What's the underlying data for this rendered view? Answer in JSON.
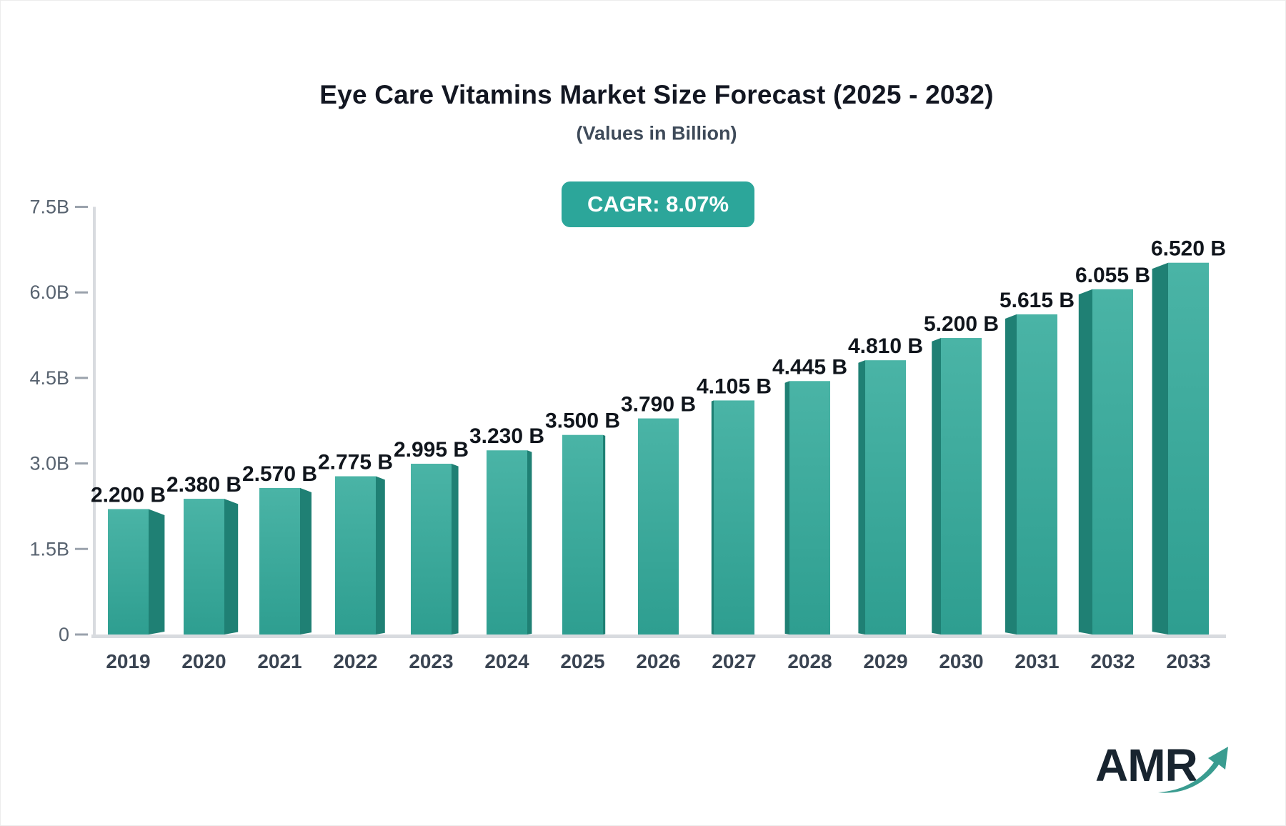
{
  "header": {
    "title": "Eye Care Vitamins Market Size Forecast (2025 - 2032)",
    "subtitle": "(Values in Billion)",
    "cagr_label": "CAGR: 8.07%"
  },
  "logo": {
    "text": "AMR"
  },
  "colors": {
    "bar_face_top": "#4ab4a6",
    "bar_face_bottom": "#2e9e90",
    "bar_side": "#1f8074",
    "badge_background": "#2ca69a",
    "badge_text": "#ffffff",
    "axis_line": "#d8dbdf",
    "tick_mark": "#9aa2ac",
    "y_label": "#57626f",
    "x_label": "#3a4452",
    "value_label": "#10151c",
    "title_text": "#131722",
    "subtitle_text": "#3e4a59",
    "logo_text": "#18242f",
    "logo_arrow": "#3a9c90"
  },
  "chart_data": {
    "type": "bar",
    "style": "3d-perspective-bars",
    "title": "Eye Care Vitamins Market Size Forecast (2025 - 2032)",
    "subtitle": "(Values in Billion)",
    "cagr": "8.07%",
    "categories": [
      "2019",
      "2020",
      "2021",
      "2022",
      "2023",
      "2024",
      "2025",
      "2026",
      "2027",
      "2028",
      "2029",
      "2030",
      "2031",
      "2032",
      "2033"
    ],
    "values": [
      2.2,
      2.38,
      2.57,
      2.775,
      2.995,
      3.23,
      3.5,
      3.79,
      4.105,
      4.445,
      4.81,
      5.2,
      5.615,
      6.055,
      6.52
    ],
    "value_labels": [
      "2.200 B",
      "2.380 B",
      "2.570 B",
      "2.775 B",
      "2.995 B",
      "3.230 B",
      "3.500 B",
      "3.790 B",
      "4.105 B",
      "4.445 B",
      "4.810 B",
      "5.200 B",
      "5.615 B",
      "6.055 B",
      "6.520 B"
    ],
    "unit": "Billion",
    "xlabel": "",
    "ylabel": "",
    "ylim": [
      0,
      7.5
    ],
    "yticks": [
      0,
      1.5,
      3.0,
      4.5,
      6.0,
      7.5
    ],
    "ytick_labels": [
      "0",
      "1.5B",
      "3.0B",
      "4.5B",
      "6.0B",
      "7.5B"
    ],
    "grid": false,
    "legend": false
  }
}
